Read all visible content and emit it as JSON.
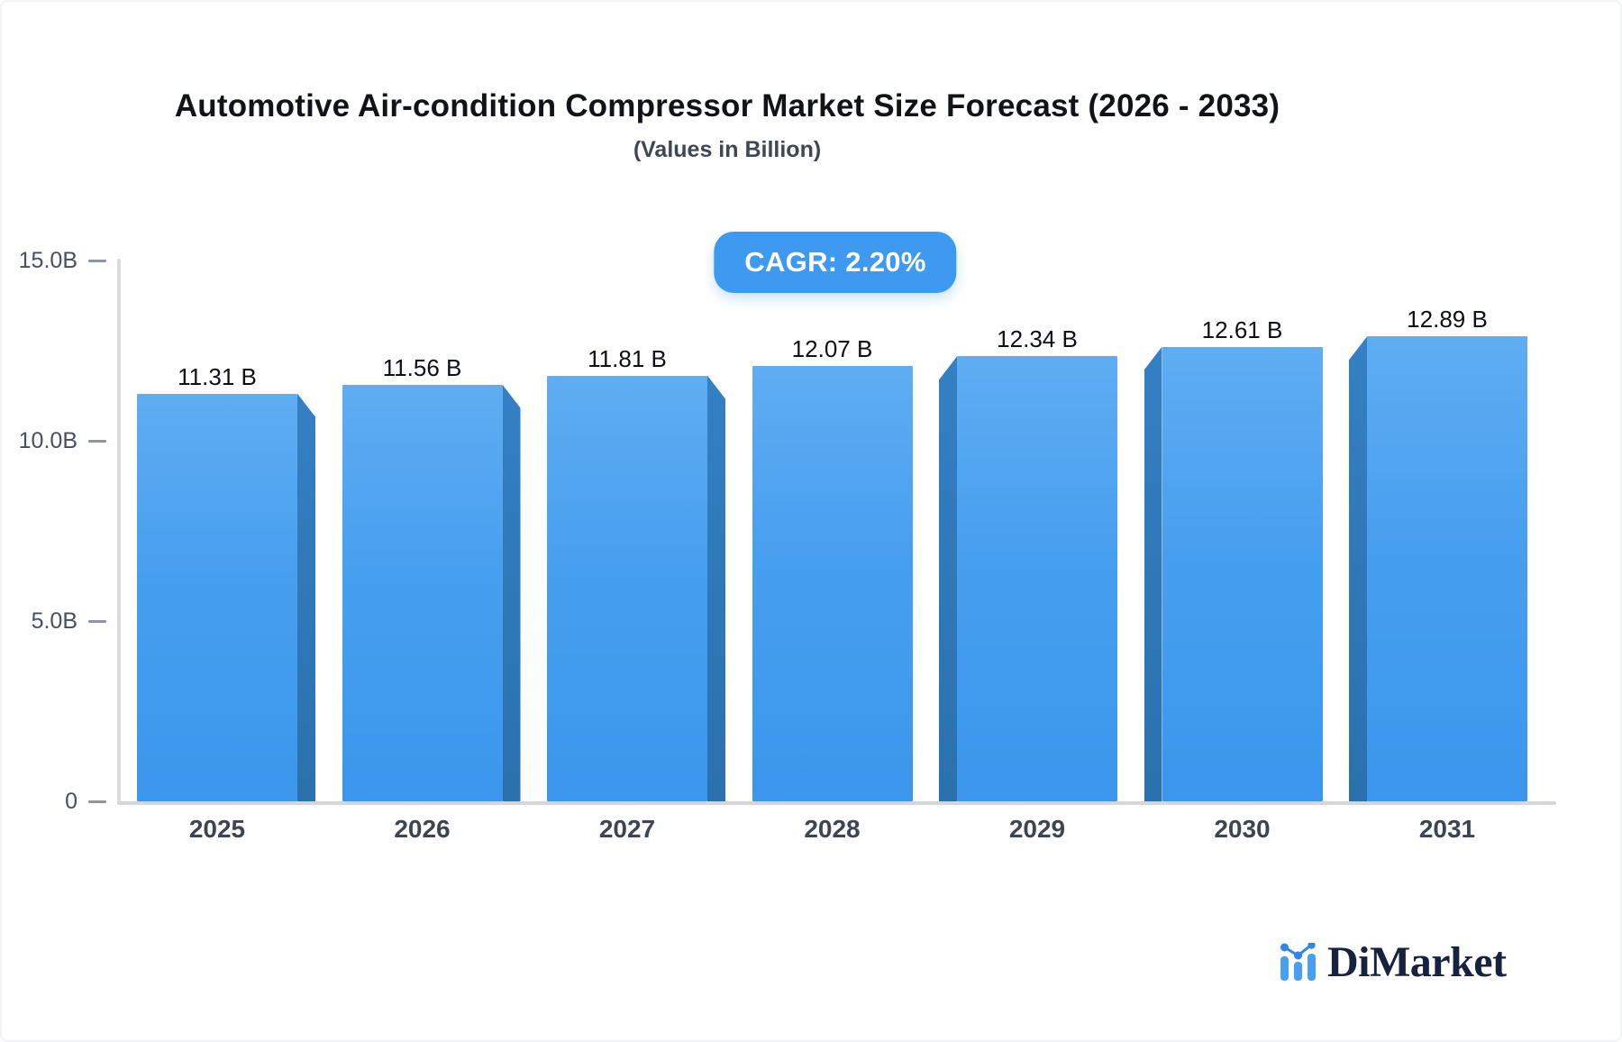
{
  "header": {
    "title": "Automotive Air-condition Compressor Market Size Forecast (2026 - 2033)",
    "subtitle": "(Values in Billion)",
    "cagr_label": "CAGR: 2.20%"
  },
  "footer": {
    "brand": "DiMarket"
  },
  "colors": {
    "bar_face_top": "#5fadf2",
    "bar_face_bottom": "#3b96ec",
    "bar_side": "#2d77b5",
    "badge_bg": "#3e9af0",
    "axis_line": "#d6d9de",
    "tick_dash": "#8e959f",
    "value_label": "#0c0f14",
    "category_label": "#3b4554",
    "logo_blue": "#47a0f3",
    "logo_navy": "#16223e"
  },
  "chart_data": {
    "type": "bar",
    "title": "Automotive Air-condition Compressor Market Size Forecast (2026 - 2033)",
    "subtitle": "(Values in Billion)",
    "annotation": "CAGR: 2.20%",
    "categories": [
      "2025",
      "2026",
      "2027",
      "2028",
      "2029",
      "2030",
      "2031"
    ],
    "values": [
      11.31,
      11.56,
      11.81,
      12.07,
      12.34,
      12.61,
      12.89
    ],
    "value_labels": [
      "11.31 B",
      "11.56 B",
      "11.81 B",
      "12.07 B",
      "12.34 B",
      "12.61 B",
      "12.89 B"
    ],
    "unit": "Billion",
    "ylabel": "",
    "xlabel": "",
    "ylim": [
      0,
      15
    ],
    "yticks": [
      {
        "value": 0,
        "label": "0"
      },
      {
        "value": 5,
        "label": "5.0B"
      },
      {
        "value": 10,
        "label": "10.0B"
      },
      {
        "value": 15,
        "label": "15.0B"
      }
    ],
    "grid": false,
    "legend": false,
    "style": "3d-bevel-bars"
  }
}
